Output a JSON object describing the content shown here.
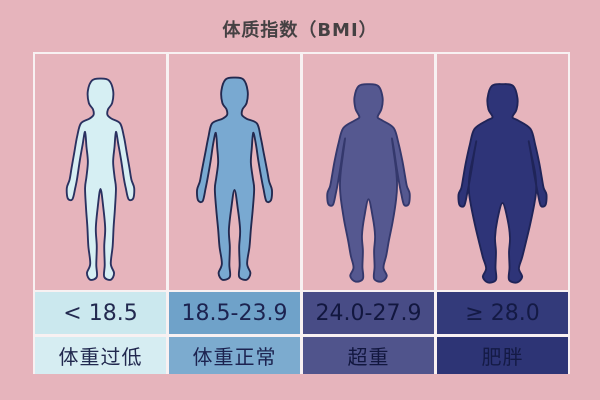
{
  "title": "体质指数（BMI）",
  "colors": {
    "background": "#e6b4bc",
    "grid_line": "#f8f1f2",
    "title_text": "#454143"
  },
  "columns": [
    {
      "id": "underweight",
      "figure": "thin",
      "bmi_range": "< 18.5",
      "category": "体重过低",
      "figure_fill": "#d6eff3",
      "figure_outline": "#2a3160",
      "range_bg": "#cbe8ee",
      "category_bg": "#d6edf2",
      "text_color": "#22294f"
    },
    {
      "id": "normal",
      "figure": "normal",
      "bmi_range": "18.5-23.9",
      "category": "体重正常",
      "figure_fill": "#79a9d1",
      "figure_outline": "#23294f",
      "range_bg": "#6fa2c9",
      "category_bg": "#7cabcf",
      "text_color": "#1c2350"
    },
    {
      "id": "overweight",
      "figure": "overweight",
      "bmi_range": "24.0-27.9",
      "category": "超重",
      "figure_fill": "#555890",
      "figure_outline": "#34386c",
      "range_bg": "#484c86",
      "category_bg": "#50548c",
      "text_color": "#12173f"
    },
    {
      "id": "obese",
      "figure": "obese",
      "bmi_range": "≥ 28.0",
      "category": "肥胖",
      "figure_fill": "#2e3478",
      "figure_outline": "#1f2458",
      "range_bg": "#333a7a",
      "category_bg": "#2d3475",
      "text_color": "#141a45"
    }
  ]
}
